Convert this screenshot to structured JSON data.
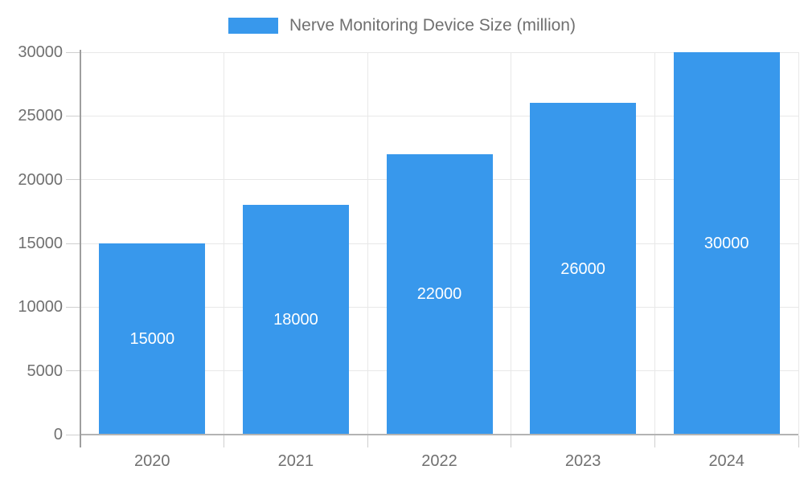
{
  "legend": {
    "label": "Nerve Monitoring Device Size (million)"
  },
  "palette": {
    "bar": "#3898ec",
    "grid": "#e8e8e8",
    "x_axis": "#b3b3b3",
    "y_axis": "#9e9e9e",
    "tick": "#cfcfcf",
    "label_text": "#707070",
    "value_text": "#ffffff",
    "background": "#ffffff"
  },
  "chart_data": {
    "type": "bar",
    "title": "Nerve Monitoring Device Size (million)",
    "categories": [
      "2020",
      "2021",
      "2022",
      "2023",
      "2024"
    ],
    "values": [
      15000,
      18000,
      22000,
      26000,
      30000
    ],
    "value_labels": [
      "15000",
      "18000",
      "22000",
      "26000",
      "30000"
    ],
    "ytick_labels": [
      "0",
      "5000",
      "10000",
      "15000",
      "20000",
      "25000",
      "30000"
    ],
    "yticks": [
      0,
      5000,
      10000,
      15000,
      20000,
      25000,
      30000
    ],
    "ylim": [
      0,
      30000
    ],
    "xlabel": "",
    "ylabel": "",
    "grid": true,
    "legend_position": "top",
    "value_label_position": "inside-center"
  }
}
